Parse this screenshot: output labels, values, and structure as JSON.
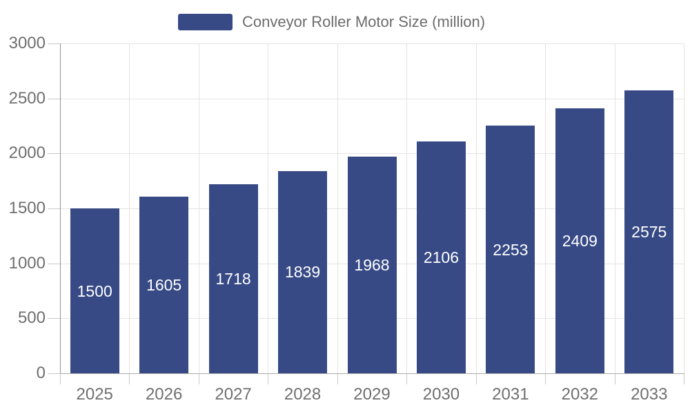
{
  "legend": {
    "label": "Conveyor Roller Motor Size (million)",
    "color": "#374a85"
  },
  "chart_data": {
    "type": "bar",
    "title": "Conveyor Roller Motor Size (million)",
    "categories": [
      "2025",
      "2026",
      "2027",
      "2028",
      "2029",
      "2030",
      "2031",
      "2032",
      "2033"
    ],
    "values": [
      1500,
      1605,
      1718,
      1839,
      1968,
      2106,
      2253,
      2409,
      2575
    ],
    "series_name": "Conveyor Roller Motor Size (million)",
    "xlabel": "",
    "ylabel": "",
    "ylim": [
      0,
      3000
    ],
    "yticks": [
      0,
      500,
      1000,
      1500,
      2000,
      2500,
      3000
    ],
    "bar_color": "#374a85",
    "value_label_color": "#ffffff",
    "grid": "on",
    "legend_position": "top",
    "value_labels": "inside-center"
  }
}
